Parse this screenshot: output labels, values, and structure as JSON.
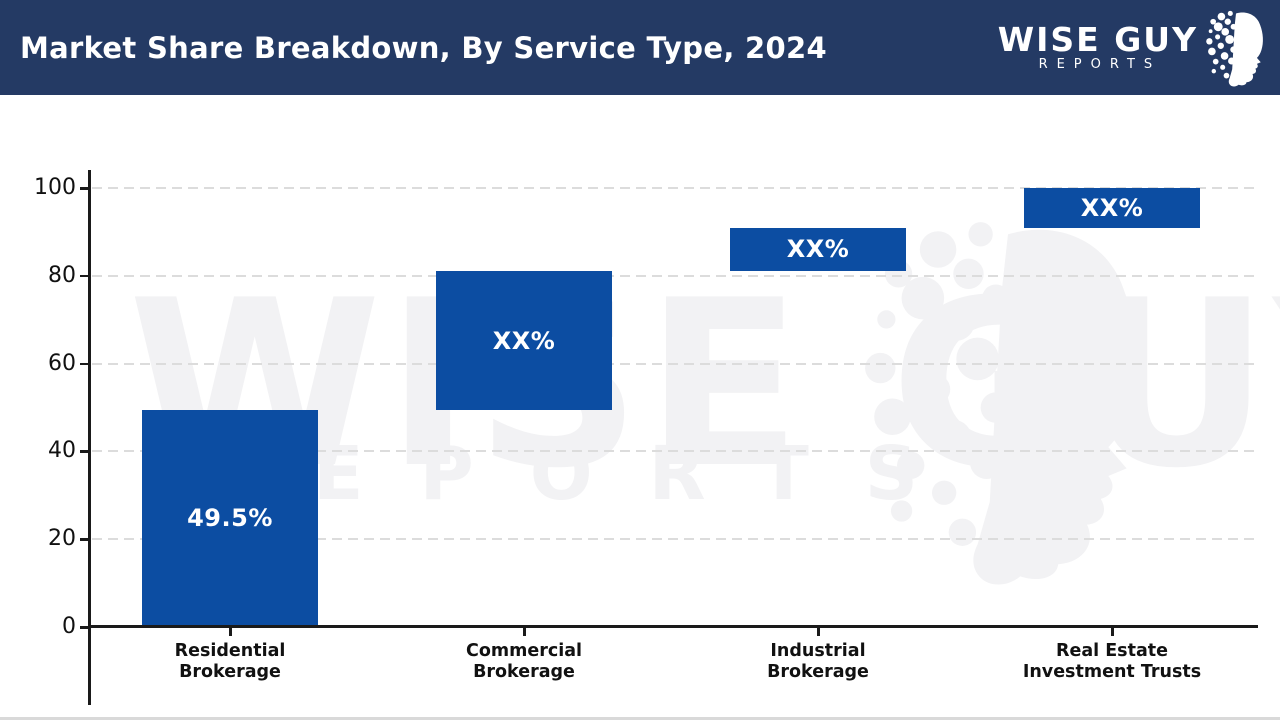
{
  "header": {
    "title": "Market Share Breakdown, By Service Type, 2024",
    "logo": {
      "line1": "WISE GUY",
      "line2": "REPORTS"
    }
  },
  "watermark": {
    "line1": "WISE GUY",
    "line2": "REPORTS"
  },
  "chart_data": {
    "type": "bar",
    "subtype": "stacked-waterfall",
    "title": "Market Share Breakdown, By Service Type, 2024",
    "unit": "%",
    "categories": [
      {
        "lines": [
          "Residential",
          "Brokerage"
        ]
      },
      {
        "lines": [
          "Commercial",
          "Brokerage"
        ]
      },
      {
        "lines": [
          "Industrial",
          "Brokerage"
        ]
      },
      {
        "lines": [
          "Real Estate",
          "Investment Trusts"
        ]
      }
    ],
    "segments": [
      {
        "category": "Residential Brokerage",
        "start": 0,
        "end": 49.5,
        "value": 49.5,
        "label": "49.5%"
      },
      {
        "category": "Commercial Brokerage",
        "start": 49.5,
        "end": 81,
        "value": 31.5,
        "label": "XX%"
      },
      {
        "category": "Industrial Brokerage",
        "start": 81,
        "end": 91,
        "value": 10,
        "label": "XX%"
      },
      {
        "category": "Real Estate Investment Trusts",
        "start": 91,
        "end": 100,
        "value": 9,
        "label": "XX%"
      }
    ],
    "y_ticks": [
      0,
      20,
      40,
      60,
      80,
      100
    ],
    "ylim": [
      0,
      100
    ],
    "xlabel": "",
    "ylabel": "",
    "grid": "horizontal-dashed",
    "legend": "none",
    "bar_color": "#0C4DA2",
    "bar_label_color": "#FFFFFF",
    "header_color": "#243A64"
  }
}
